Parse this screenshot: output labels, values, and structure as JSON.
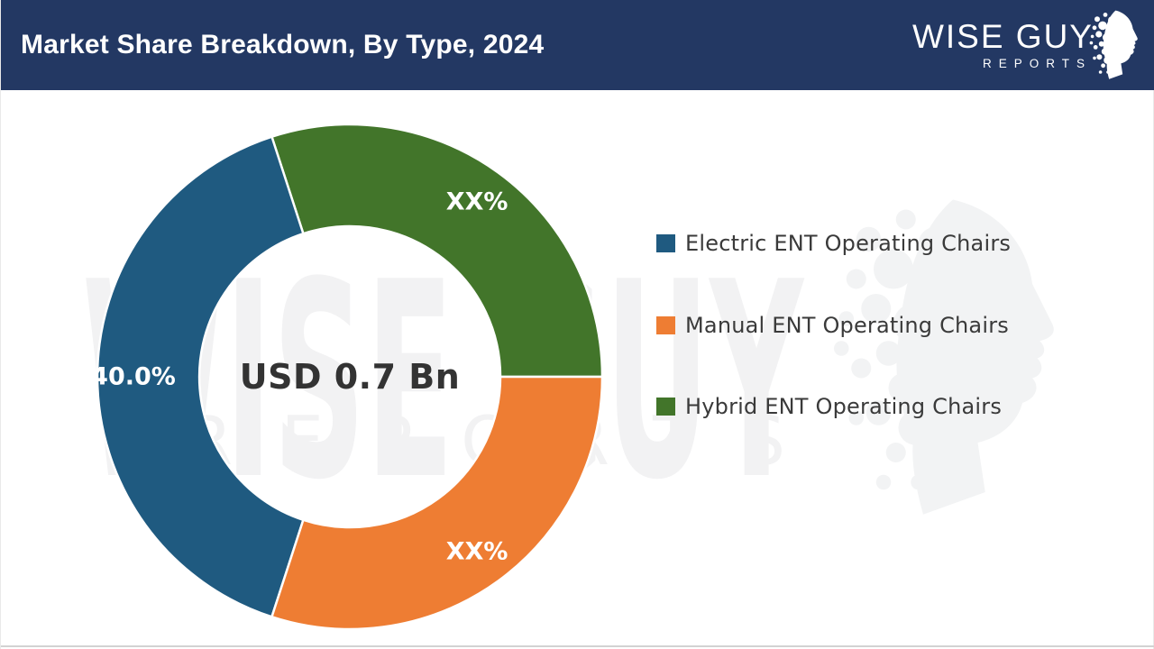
{
  "header": {
    "title": "Market Share Breakdown, By Type, 2024",
    "logo": {
      "line1": "WISE GUY",
      "line2": "REPORTS"
    }
  },
  "watermark": {
    "line1": "WISE GUY",
    "line2": "REPORTS"
  },
  "chart_data": {
    "type": "pie",
    "subtype": "donut",
    "title": "Market Share Breakdown, By Type, 2024",
    "center_label": "USD 0.7 Bn",
    "start_angle_deg": 0,
    "direction": "counterclockwise",
    "segments": [
      {
        "name": "Hybrid ENT Operating Chairs",
        "value_pct": 30,
        "label": "XX%",
        "color": "#42752a"
      },
      {
        "name": "Electric ENT Operating Chairs",
        "value_pct": 40,
        "label": "40.0%",
        "color": "#1f5a80"
      },
      {
        "name": "Manual ENT Operating Chairs",
        "value_pct": 30,
        "label": "XX%",
        "color": "#ee7d33"
      }
    ],
    "legend_position": "right",
    "legend": [
      {
        "label": "Electric ENT Operating Chairs",
        "color": "#1f5a80"
      },
      {
        "label": "Manual ENT Operating Chairs",
        "color": "#ee7d33"
      },
      {
        "label": "Hybrid ENT Operating Chairs",
        "color": "#42752a"
      }
    ]
  }
}
